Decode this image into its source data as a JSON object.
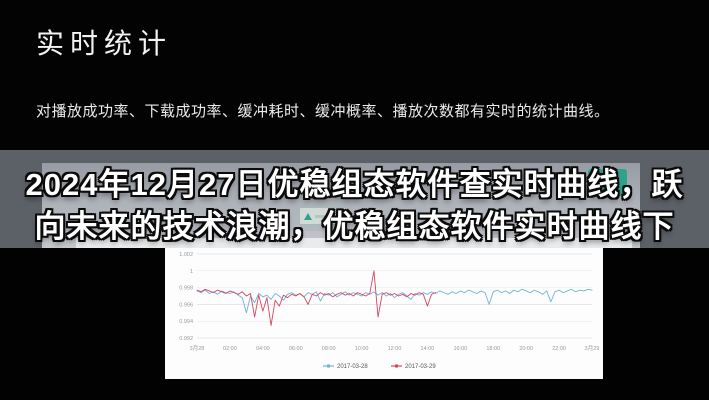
{
  "header": {
    "title": "实时统计",
    "description": "对播放成功率、下载成功率、缓冲耗时、缓冲概率、播放次数都有实时的统计曲线。"
  },
  "banner": {
    "line1": "2024年12月27日优稳组态软件查实时曲线，跃",
    "line2": "向未来的技术浪潮，优稳组态软件实时曲线下",
    "accent_color": "#2fa28d",
    "frame_color": "#5c6168",
    "panel_color": "#b4b9bf"
  },
  "chart_data": {
    "type": "line",
    "title": "",
    "xlabel": "",
    "ylabel": "",
    "xlim": [
      0,
      24
    ],
    "ylim": [
      0.992,
      1.002
    ],
    "grid": true,
    "legend_position": "bottom",
    "background": "#fdfdfe",
    "grid_color": "#e5e6e8",
    "tick_color": "#999999",
    "legend_text_color": "#555555",
    "yticks": [
      {
        "label": "1.002",
        "value": 1.002
      },
      {
        "label": "1",
        "value": 1.0
      },
      {
        "label": "0.998",
        "value": 0.998
      },
      {
        "label": "0.996",
        "value": 0.996
      },
      {
        "label": "0.994",
        "value": 0.994
      },
      {
        "label": "0.992",
        "value": 0.992
      }
    ],
    "xticks": [
      {
        "label": "3月28",
        "hour": 0
      },
      {
        "label": "02:00",
        "hour": 2
      },
      {
        "label": "04:00",
        "hour": 4
      },
      {
        "label": "06:00",
        "hour": 6
      },
      {
        "label": "08:00",
        "hour": 8
      },
      {
        "label": "10:00",
        "hour": 10
      },
      {
        "label": "12:00",
        "hour": 12
      },
      {
        "label": "14:00",
        "hour": 14
      },
      {
        "label": "16:00",
        "hour": 16
      },
      {
        "label": "18:00",
        "hour": 18
      },
      {
        "label": "20:00",
        "hour": 20
      },
      {
        "label": "22:00",
        "hour": 22
      },
      {
        "label": "3月29",
        "hour": 24
      }
    ],
    "series": [
      {
        "name": "2017-03-28",
        "color": "#6fb3d6",
        "start_hour": 0,
        "step_hours": 0.25,
        "values": [
          0.9976,
          0.9974,
          0.9977,
          0.9973,
          0.9975,
          0.9972,
          0.9976,
          0.9974,
          0.9973,
          0.9975,
          0.9971,
          0.9968,
          0.995,
          0.997,
          0.9962,
          0.9973,
          0.9969,
          0.9971,
          0.9966,
          0.9973,
          0.997,
          0.9965,
          0.9972,
          0.9974,
          0.9971,
          0.9973,
          0.9969,
          0.9974,
          0.9972,
          0.9975,
          0.9964,
          0.9973,
          0.9971,
          0.9974,
          0.9969,
          0.9972,
          0.9975,
          0.9971,
          0.9974,
          0.9972,
          0.997,
          0.9974,
          0.9972,
          0.9975,
          0.9971,
          0.9974,
          0.997,
          0.9973,
          0.9968,
          0.9972,
          0.9974,
          0.997,
          0.9966,
          0.9973,
          0.9971,
          0.9974,
          0.9972,
          0.9975,
          0.9973,
          0.9976,
          0.9974,
          0.9972,
          0.9975,
          0.9973,
          0.9976,
          0.9974,
          0.9977,
          0.9975,
          0.9973,
          0.9976,
          0.9974,
          0.996,
          0.9975,
          0.9977,
          0.9974,
          0.9976,
          0.9973,
          0.9977,
          0.9975,
          0.9978,
          0.9976,
          0.9974,
          0.9977,
          0.9975,
          0.9972,
          0.9976,
          0.9963,
          0.9975,
          0.9977,
          0.9974,
          0.9976,
          0.9978,
          0.9975,
          0.9977,
          0.9976,
          0.9978,
          0.9977
        ]
      },
      {
        "name": "2017-03-29",
        "color": "#d8465f",
        "start_hour": 0,
        "step_hours": 0.25,
        "values": [
          0.9977,
          0.9975,
          0.9978,
          0.9976,
          0.9974,
          0.9977,
          0.9975,
          0.9973,
          0.9976,
          0.9974,
          0.9972,
          0.9975,
          0.997,
          0.9973,
          0.9945,
          0.9971,
          0.9952,
          0.9968,
          0.9935,
          0.9965,
          0.9958,
          0.9971,
          0.9968,
          0.9972,
          0.997,
          0.9973,
          0.9969,
          0.996,
          0.9972,
          0.997,
          0.9974,
          0.9971,
          0.9973,
          0.9969,
          0.9972,
          0.9974,
          0.9971,
          0.9973,
          0.997,
          0.9974,
          0.9972,
          0.997,
          0.9973,
          1.0,
          0.9945,
          0.9972,
          0.9974,
          0.9971,
          0.9973,
          0.997,
          0.9972,
          0.9969,
          0.9973,
          0.9971,
          0.9974,
          0.9972,
          0.9958,
          0.9972,
          0.9974
        ]
      }
    ]
  }
}
